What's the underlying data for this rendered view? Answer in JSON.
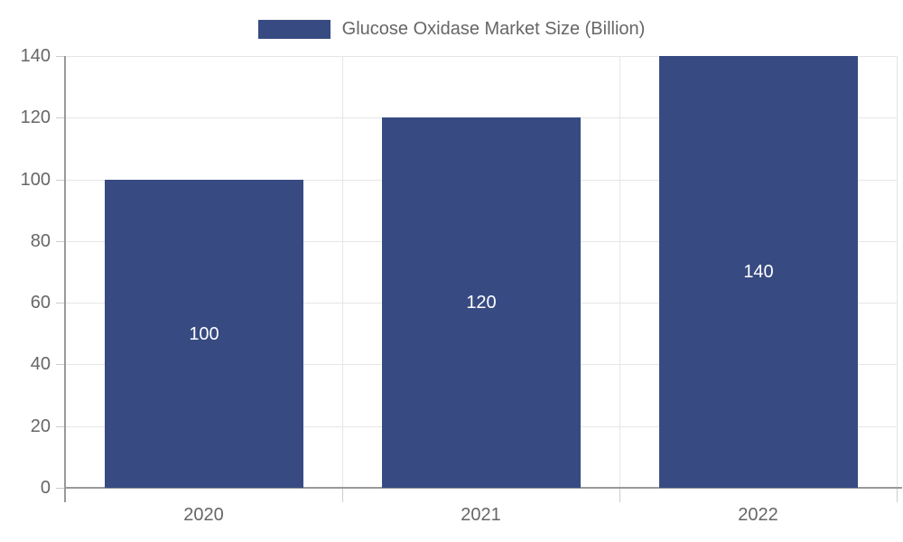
{
  "legend": {
    "label": "Glucose Oxidase Market Size (Billion)"
  },
  "chart_data": {
    "type": "bar",
    "title": "Glucose Oxidase Market Size (Billion)",
    "categories": [
      "2020",
      "2021",
      "2022"
    ],
    "series": [
      {
        "name": "Glucose Oxidase Market Size (Billion)",
        "values": [
          100,
          120,
          140
        ]
      }
    ],
    "data_labels": [
      "100",
      "120",
      "140"
    ],
    "xlabel": "",
    "ylabel": "",
    "ylim": [
      0,
      140
    ],
    "yticks": [
      0,
      20,
      40,
      60,
      80,
      100,
      120,
      140
    ],
    "grid": true,
    "legend_position": "top-center",
    "colors": {
      "bar": "#374b82",
      "bar_label": "#ffffff",
      "axis_text": "#666666",
      "legend_text": "#666666",
      "gridline": "#e6e6e6",
      "tick": "#cccccc",
      "axis_line": "#999999",
      "background": "#ffffff"
    }
  }
}
